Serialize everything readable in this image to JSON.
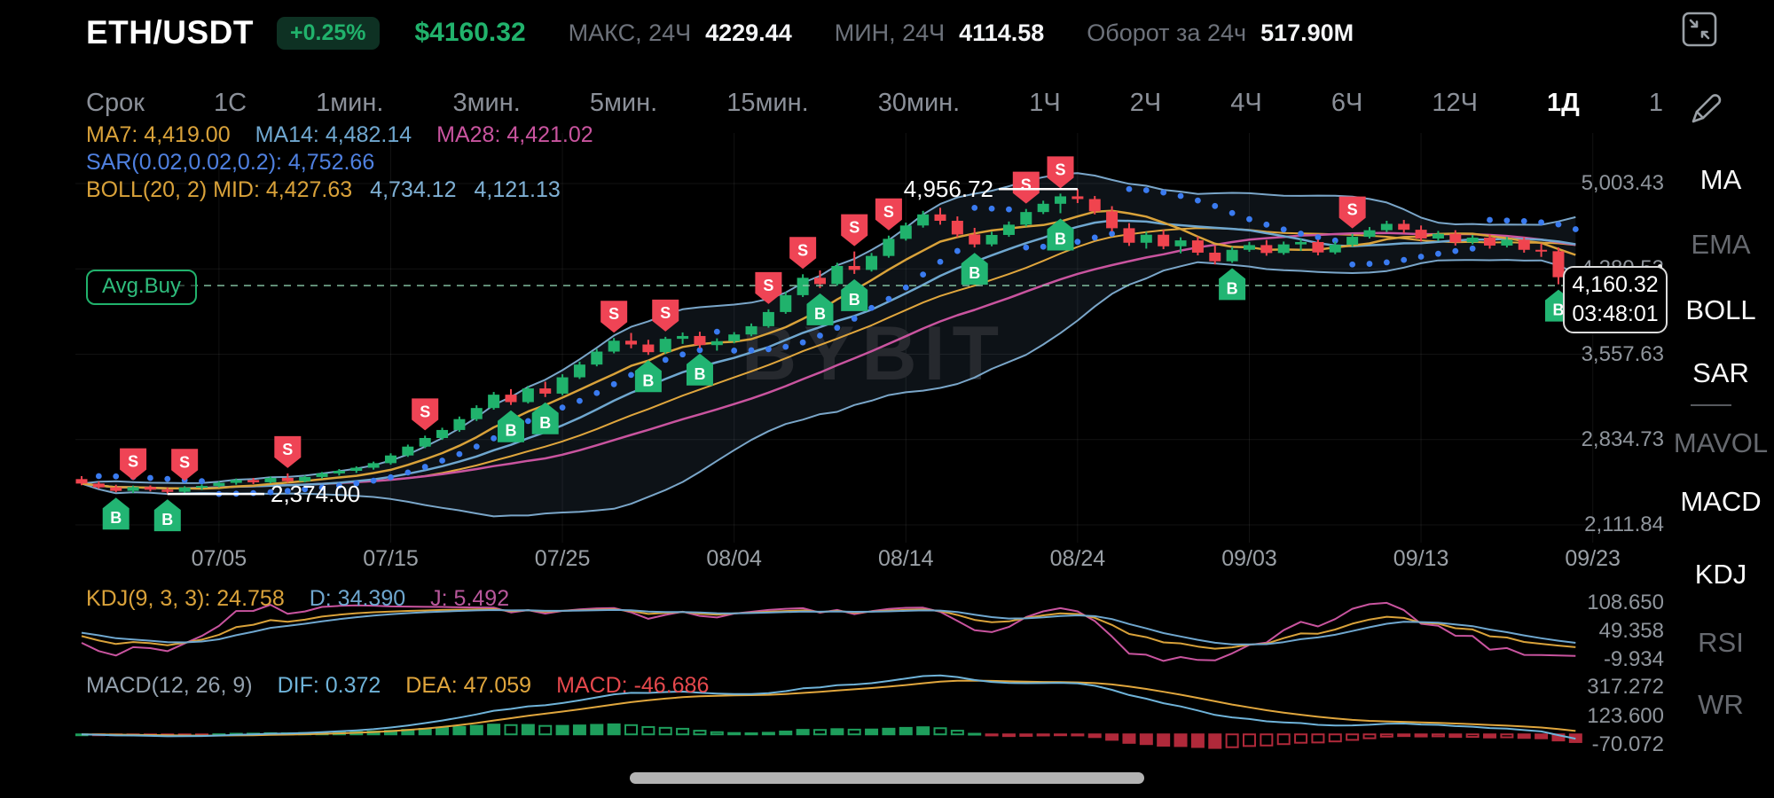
{
  "app": {
    "watermark": "BYBIT"
  },
  "colors": {
    "up": "#20b26c",
    "down": "#f0444e",
    "accent_green": "#21b26c",
    "ma7": "#d9a23a",
    "ma14": "#6fa7cf",
    "ma28": "#c9549f",
    "sar_dot": "#3a7bf0",
    "boll_band": "#7aa6c9",
    "dif_line": "#6fb3d9",
    "dea_line": "#e0a63d",
    "hist_up": "#1e9e5c",
    "hist_down": "#b0293a",
    "marker_sell": "#ef4455",
    "marker_buy": "#22b573"
  },
  "header": {
    "pair": "ETH/USDT",
    "change": "+0.25%",
    "price": "$4160.32",
    "stats": [
      {
        "label": "МАКС, 24Ч",
        "value": "4229.44"
      },
      {
        "label": "МИН, 24Ч",
        "value": "4114.58"
      },
      {
        "label": "Оборот за 24ч",
        "value": "517.90M"
      }
    ]
  },
  "timeframe_bar": {
    "title": "Срок",
    "items": [
      "1С",
      "1мин.",
      "3мин.",
      "5мин.",
      "15мин.",
      "30мин.",
      "1Ч",
      "2Ч",
      "4Ч",
      "6Ч",
      "12Ч",
      "1Д",
      "1"
    ],
    "active": "1Д"
  },
  "legend": {
    "ma7": "MA7: 4,419.00",
    "ma14": "MA14: 4,482.14",
    "ma28": "MA28: 4,421.02",
    "sar": "SAR(0.02,0.02,0.2): 4,752.66",
    "boll": "BOLL(20, 2) MID: 4,427.63",
    "boll_up": "4,734.12",
    "boll_low": "4,121.13"
  },
  "kdj_legend": {
    "k": "KDJ(9, 3, 3): 24.758",
    "d": "D: 34.390",
    "j": "J: 5.492"
  },
  "macd_legend": {
    "name": "MACD(12, 26, 9)",
    "dif": "DIF: 0.372",
    "dea": "DEA: 47.059",
    "macd": "MACD: -46.686"
  },
  "sidebar": {
    "items": [
      {
        "label": "MA",
        "active": true
      },
      {
        "label": "EMA",
        "active": false
      },
      {
        "label": "BOLL",
        "active": true
      },
      {
        "label": "SAR",
        "active": true
      },
      {
        "label": "MAVOL",
        "active": false
      },
      {
        "label": "MACD",
        "active": true
      },
      {
        "label": "KDJ",
        "active": true
      },
      {
        "label": "RSI",
        "active": false
      },
      {
        "label": "WR",
        "active": false
      }
    ],
    "divider_after_index": 3
  },
  "avg_buy": {
    "label": "Avg.Buy"
  },
  "price_tooltip": {
    "price": "4,160.32",
    "time": "03:48:01"
  },
  "chart_data": {
    "type": "candlestick",
    "symbol": "ETH/USDT",
    "interval": "1Д",
    "price_axis": {
      "labels": [
        "5,003.43",
        "4,280.53",
        "3,557.63",
        "2,834.73",
        "2,111.84"
      ],
      "values": [
        5003.43,
        4280.53,
        3557.63,
        2834.73,
        2111.84
      ]
    },
    "date_axis": {
      "labels": [
        "07/05",
        "07/15",
        "07/25",
        "08/04",
        "08/14",
        "08/24",
        "09/03",
        "09/13",
        "09/23"
      ],
      "indices": [
        8,
        18,
        28,
        38,
        48,
        58,
        68,
        78,
        88
      ]
    },
    "kdj_axis": {
      "labels": [
        "108.650",
        "49.358",
        "-9.934"
      ],
      "values": [
        108.65,
        49.358,
        -9.934
      ]
    },
    "macd_axis": {
      "labels": [
        "317.272",
        "123.600",
        "-70.072"
      ],
      "values": [
        317.272,
        123.6,
        -70.072
      ]
    },
    "overlays": {
      "ma_periods": [
        7,
        14,
        28
      ],
      "boll": {
        "period": 20,
        "mult": 2
      },
      "sar": [
        0.02,
        0.02,
        0.2
      ]
    },
    "markers": {
      "sell": [
        3,
        6,
        12,
        20,
        31,
        34,
        40,
        42,
        45,
        47,
        55,
        57,
        74
      ],
      "buy": [
        2,
        5,
        25,
        27,
        33,
        36,
        43,
        45,
        52,
        57,
        67,
        86
      ]
    },
    "annotations": {
      "high": {
        "index": 58,
        "price": 4956.72,
        "label": "4,956.72"
      },
      "low": {
        "index": 5,
        "price": 2374.0,
        "label": "2,374.00"
      },
      "avg_buy_price": 4139.0,
      "last_price": 4160.32
    },
    "candles": [
      [
        2500,
        2525,
        2448,
        2462
      ],
      [
        2462,
        2480,
        2418,
        2430
      ],
      [
        2430,
        2452,
        2388,
        2400
      ],
      [
        2400,
        2445,
        2382,
        2432
      ],
      [
        2432,
        2446,
        2396,
        2410
      ],
      [
        2410,
        2428,
        2374,
        2392
      ],
      [
        2392,
        2440,
        2383,
        2428
      ],
      [
        2428,
        2455,
        2407,
        2442
      ],
      [
        2442,
        2480,
        2430,
        2468
      ],
      [
        2468,
        2505,
        2452,
        2492
      ],
      [
        2492,
        2510,
        2458,
        2473
      ],
      [
        2473,
        2522,
        2465,
        2510
      ],
      [
        2510,
        2548,
        2470,
        2482
      ],
      [
        2482,
        2530,
        2472,
        2518
      ],
      [
        2518,
        2560,
        2505,
        2548
      ],
      [
        2548,
        2585,
        2530,
        2570
      ],
      [
        2570,
        2608,
        2552,
        2596
      ],
      [
        2596,
        2648,
        2580,
        2635
      ],
      [
        2635,
        2718,
        2622,
        2700
      ],
      [
        2700,
        2792,
        2688,
        2775
      ],
      [
        2775,
        2868,
        2762,
        2848
      ],
      [
        2848,
        2935,
        2832,
        2916
      ],
      [
        2916,
        3030,
        2900,
        3008
      ],
      [
        3008,
        3125,
        2992,
        3102
      ],
      [
        3102,
        3238,
        3088,
        3215
      ],
      [
        3215,
        3262,
        3128,
        3152
      ],
      [
        3152,
        3290,
        3140,
        3268
      ],
      [
        3268,
        3325,
        3195,
        3224
      ],
      [
        3224,
        3388,
        3210,
        3362
      ],
      [
        3362,
        3495,
        3348,
        3470
      ],
      [
        3470,
        3602,
        3455,
        3580
      ],
      [
        3580,
        3695,
        3565,
        3672
      ],
      [
        3672,
        3738,
        3608,
        3640
      ],
      [
        3640,
        3680,
        3552,
        3575
      ],
      [
        3575,
        3705,
        3560,
        3688
      ],
      [
        3688,
        3742,
        3645,
        3712
      ],
      [
        3712,
        3748,
        3608,
        3635
      ],
      [
        3635,
        3692,
        3588,
        3668
      ],
      [
        3668,
        3745,
        3650,
        3725
      ],
      [
        3725,
        3818,
        3710,
        3795
      ],
      [
        3795,
        3938,
        3782,
        3915
      ],
      [
        3915,
        4085,
        3900,
        4058
      ],
      [
        4058,
        4235,
        4042,
        4205
      ],
      [
        4205,
        4268,
        4118,
        4152
      ],
      [
        4152,
        4332,
        4138,
        4305
      ],
      [
        4305,
        4428,
        4238,
        4272
      ],
      [
        4272,
        4415,
        4258,
        4390
      ],
      [
        4390,
        4562,
        4375,
        4535
      ],
      [
        4535,
        4672,
        4520,
        4648
      ],
      [
        4648,
        4772,
        4630,
        4742
      ],
      [
        4742,
        4798,
        4655,
        4688
      ],
      [
        4688,
        4725,
        4548,
        4572
      ],
      [
        4572,
        4628,
        4462,
        4488
      ],
      [
        4488,
        4595,
        4472,
        4568
      ],
      [
        4568,
        4682,
        4552,
        4655
      ],
      [
        4655,
        4788,
        4640,
        4762
      ],
      [
        4762,
        4858,
        4745,
        4832
      ],
      [
        4832,
        4918,
        4752,
        4895
      ],
      [
        4895,
        4956.72,
        4838,
        4872
      ],
      [
        4872,
        4898,
        4742,
        4768
      ],
      [
        4768,
        4812,
        4598,
        4625
      ],
      [
        4625,
        4668,
        4475,
        4502
      ],
      [
        4502,
        4595,
        4452,
        4570
      ],
      [
        4570,
        4612,
        4448,
        4472
      ],
      [
        4472,
        4548,
        4412,
        4522
      ],
      [
        4522,
        4555,
        4395,
        4418
      ],
      [
        4418,
        4475,
        4318,
        4345
      ],
      [
        4345,
        4468,
        4332,
        4442
      ],
      [
        4442,
        4508,
        4425,
        4482
      ],
      [
        4482,
        4525,
        4392,
        4415
      ],
      [
        4415,
        4512,
        4400,
        4488
      ],
      [
        4488,
        4535,
        4432,
        4508
      ],
      [
        4508,
        4528,
        4395,
        4420
      ],
      [
        4420,
        4512,
        4405,
        4485
      ],
      [
        4485,
        4578,
        4468,
        4552
      ],
      [
        4552,
        4635,
        4538,
        4608
      ],
      [
        4608,
        4688,
        4592,
        4662
      ],
      [
        4662,
        4695,
        4582,
        4612
      ],
      [
        4612,
        4648,
        4512,
        4538
      ],
      [
        4538,
        4602,
        4518,
        4578
      ],
      [
        4578,
        4608,
        4478,
        4505
      ],
      [
        4505,
        4568,
        4488,
        4545
      ],
      [
        4545,
        4572,
        4452,
        4478
      ],
      [
        4478,
        4552,
        4462,
        4528
      ],
      [
        4528,
        4548,
        4418,
        4442
      ],
      [
        4442,
        4495,
        4382,
        4430
      ],
      [
        4430,
        4462,
        4150,
        4210
      ],
      [
        4210,
        4229.44,
        4114.58,
        4160.32
      ]
    ]
  }
}
